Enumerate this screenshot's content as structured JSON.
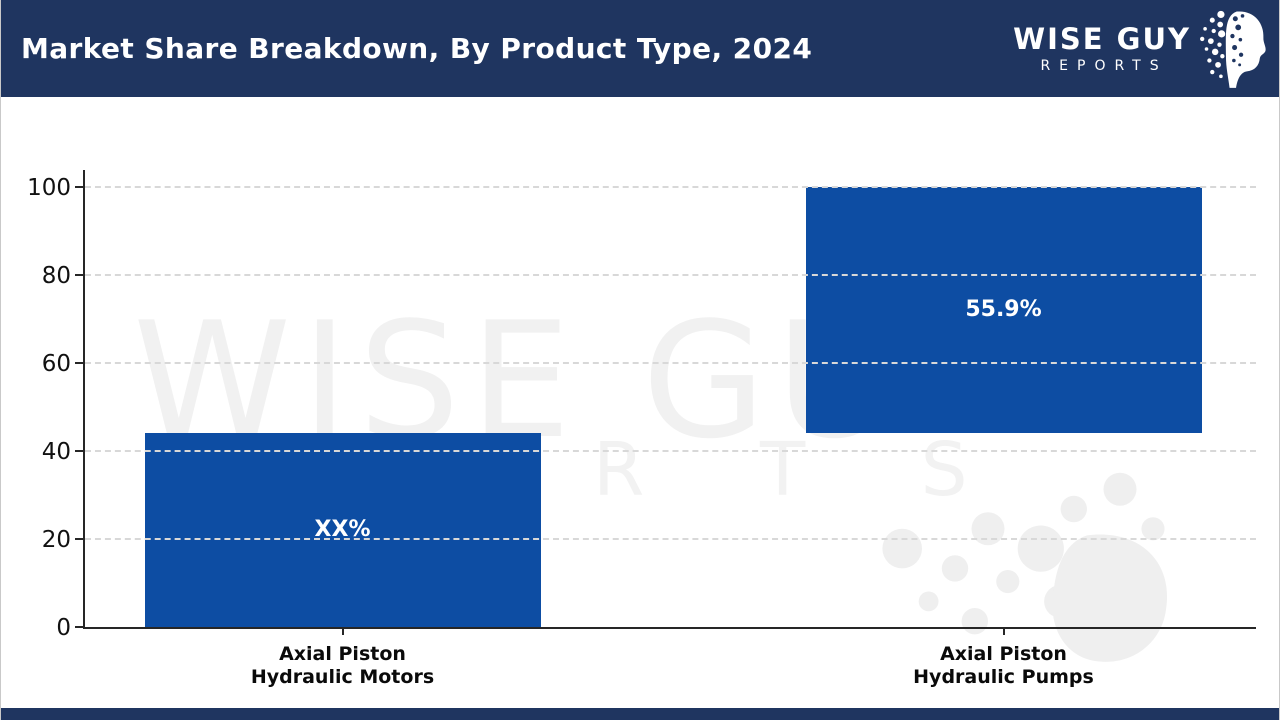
{
  "header": {
    "title": "Market Share Breakdown, By Product Type, 2024",
    "logo": {
      "line1": "WISE GUY",
      "line2": "REPORTS"
    }
  },
  "watermark": {
    "line1": "WISE GU",
    "line2": "R T S"
  },
  "chart_data": {
    "type": "bar",
    "title": "Market Share Breakdown, By Product Type, 2024",
    "xlabel": "",
    "ylabel": "",
    "categories": [
      "Axial Piston Hydraulic Motors",
      "Axial Piston Hydraulic Pumps"
    ],
    "bars": [
      {
        "category": [
          "Axial Piston",
          "Hydraulic Motors"
        ],
        "label": "XX%",
        "start": 0,
        "end": 44.1
      },
      {
        "category": [
          "Axial Piston",
          "Hydraulic Pumps"
        ],
        "label": "55.9%",
        "start": 44.1,
        "end": 100
      }
    ],
    "series_note": "stacked breakdown: pumps bar floats from 44.1 to 100 (height 55.9%)",
    "yticks": [
      0,
      20,
      40,
      60,
      80,
      100
    ],
    "ylim": [
      0,
      103.9
    ],
    "grid": "horizontal dashed",
    "legend": "none",
    "bar_color": "#0d4da3"
  },
  "colors": {
    "header_bg": "#1f3560",
    "footer_bg": "#1f3560",
    "bar": "#0d4da3",
    "gridline": "#d8d8d8",
    "axis": "#262626",
    "watermark": "#f1f1f1"
  }
}
